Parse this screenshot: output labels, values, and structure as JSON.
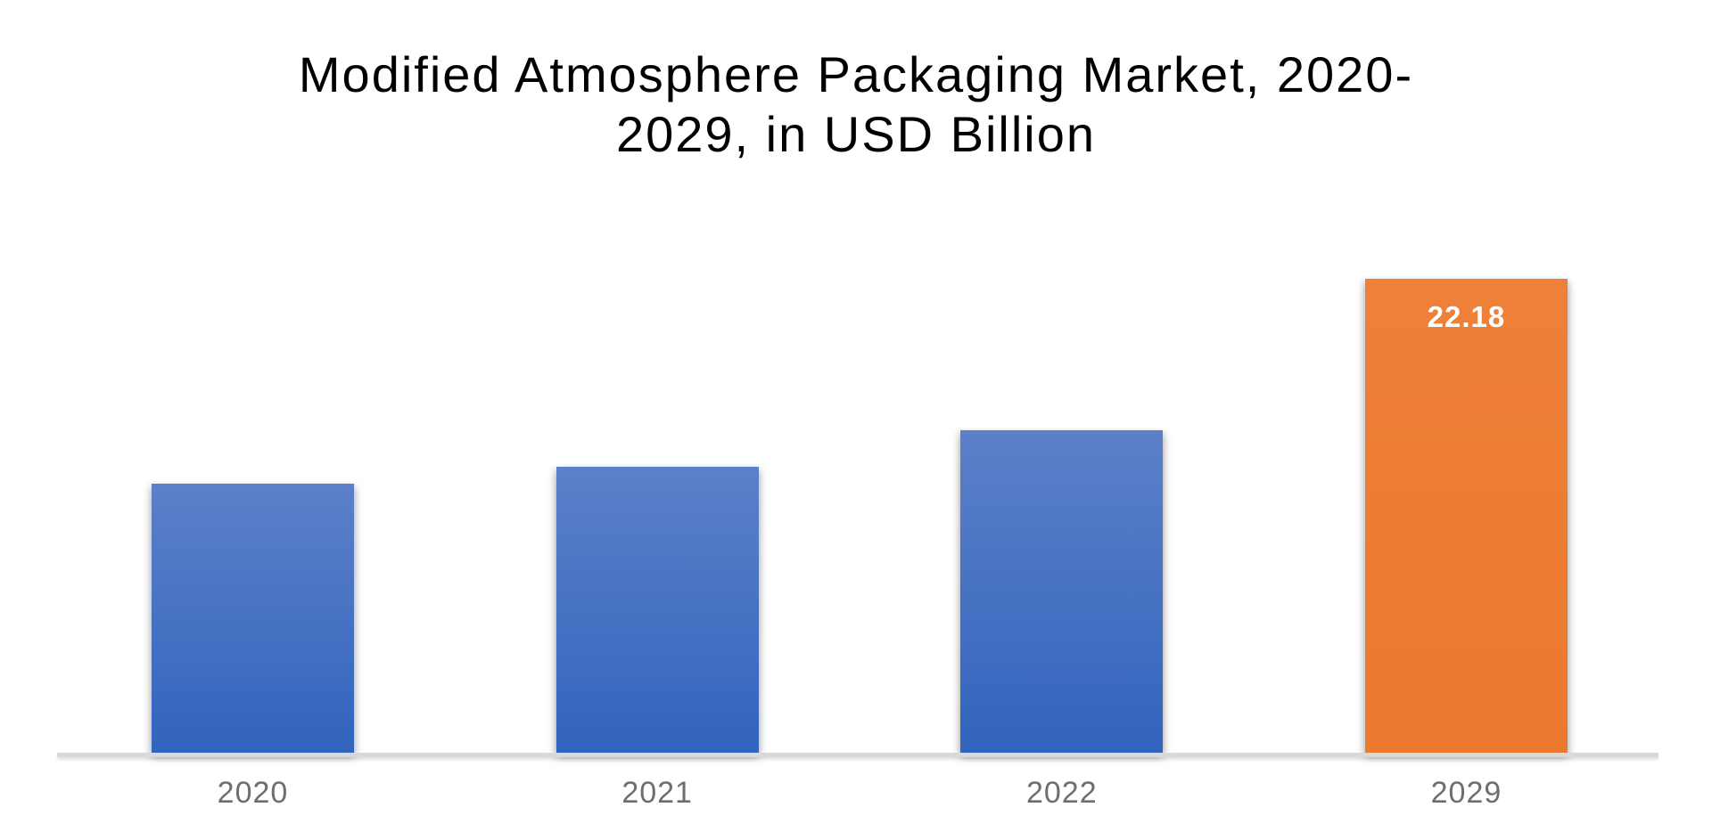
{
  "page": {
    "background_color": "#ffffff"
  },
  "title": {
    "line1": "Modified Atmosphere Packaging Market, 2020-",
    "line2": "2029, in USD Billion",
    "color": "#000000"
  },
  "chart_data": {
    "type": "bar",
    "title": "Modified Atmosphere Packaging Market, 2020-2029, in USD Billion",
    "categories": [
      "2020",
      "2021",
      "2022",
      "2029"
    ],
    "values": [
      12.6,
      13.4,
      15.1,
      22.18
    ],
    "data_labels": [
      "",
      "",
      "",
      "22.18"
    ],
    "base_colors": [
      "#4472C4",
      "#4472C4",
      "#4472C4",
      "#ED7D31"
    ],
    "bar_color_top": [
      "#5C80C9",
      "#5C80C9",
      "#5C80C9",
      "#EE8038"
    ],
    "bar_color_bottom": [
      "#3164BD",
      "#3164BD",
      "#3164BD",
      "#EC7A2E"
    ],
    "xlabel": "",
    "ylabel": "",
    "ylim": [
      0,
      22.18
    ],
    "grid": false,
    "legend": false,
    "axis_line_color": "#D9D9D9",
    "tick_label_color": "#6E6E6E",
    "data_label_color": "#FFFFFF"
  }
}
